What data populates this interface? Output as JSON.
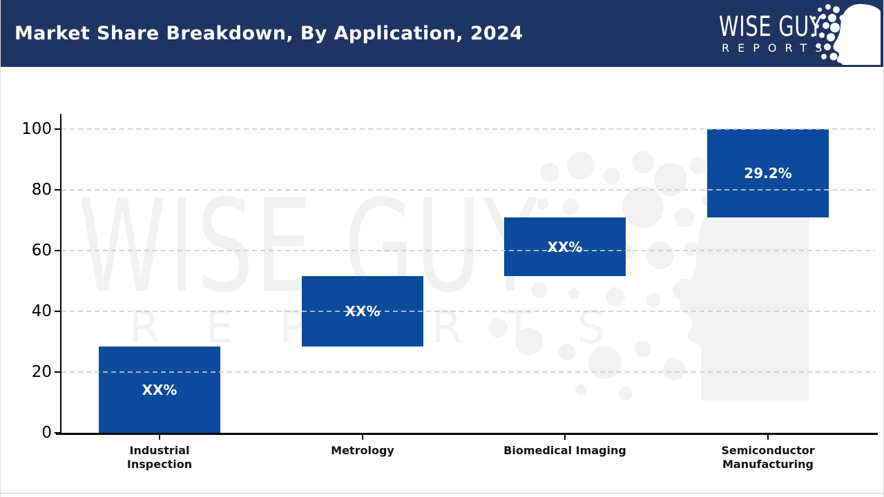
{
  "header": {
    "title": "Market Share Breakdown, By Application, 2024",
    "logo": {
      "wordmark": "WISE GUY",
      "subtext": "REPORTS"
    }
  },
  "watermark": {
    "wordmark": "WISE GUY",
    "subtext": "REPORTS"
  },
  "icons": [
    "logo-face-profile-icon",
    "logo-dots-pattern",
    "watermark-face-profile-icon",
    "watermark-dots-pattern"
  ],
  "colors": {
    "header_bg": "#1e3463",
    "bar": "#0b4a9c",
    "bar_label_text": "#ffffff",
    "title_text": "#ffffff",
    "axis": "#000000",
    "gridline": "#d5d9de",
    "watermark": "#f1f1f1"
  },
  "chart_data": {
    "type": "bar",
    "variant": "waterfall",
    "title": "Market Share Breakdown, By Application, 2024",
    "categories": [
      "Industrial Inspection",
      "Metrology",
      "Biomedical Imaging",
      "Semiconductor Manufacturing"
    ],
    "category_lines": [
      [
        "Industrial",
        "Inspection"
      ],
      [
        "Metrology"
      ],
      [
        "Biomedical Imaging"
      ],
      [
        "Semiconductor",
        "Manufacturing"
      ]
    ],
    "series": [
      {
        "name": "Market share (%)",
        "data": [
          {
            "category": "Industrial Inspection",
            "start": 0,
            "end": 28.4,
            "label": "XX%"
          },
          {
            "category": "Metrology",
            "start": 28.4,
            "end": 51.6,
            "label": "XX%"
          },
          {
            "category": "Biomedical Imaging",
            "start": 51.6,
            "end": 70.8,
            "label": "XX%"
          },
          {
            "category": "Semiconductor Manufacturing",
            "start": 70.8,
            "end": 100,
            "label": "29.2%"
          }
        ]
      }
    ],
    "xlabel": "",
    "ylabel": "",
    "yticks": [
      0,
      20,
      40,
      60,
      80,
      100
    ],
    "ylim": [
      0,
      104
    ],
    "grid": "horizontal-dashed",
    "legend": "none",
    "bar_color": "#0b4a9c"
  }
}
